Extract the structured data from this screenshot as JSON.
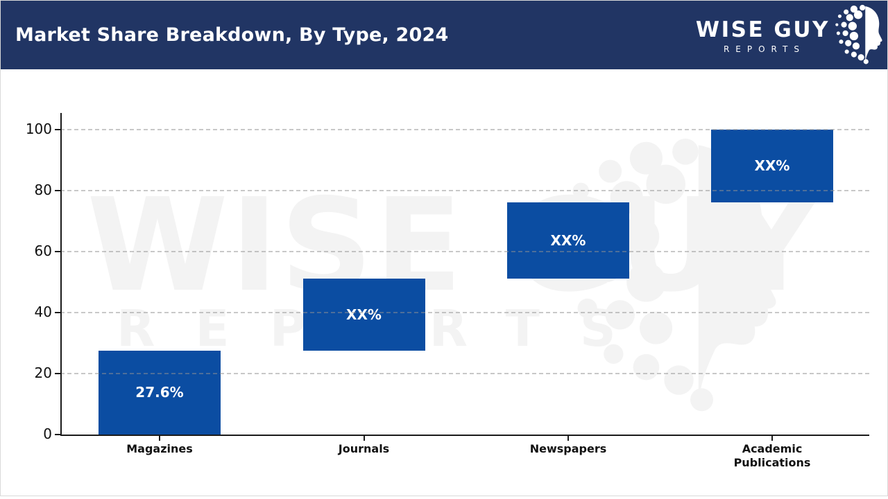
{
  "header": {
    "title": "Market Share Breakdown, By Type, 2024",
    "logo": {
      "line1": "WISE GUY",
      "line2": "REPORTS"
    }
  },
  "watermark": {
    "line1": "WISE GUY",
    "line2": "REPORTS"
  },
  "colors": {
    "header_background": "#213564",
    "bar_blue": "#0b4da2",
    "axis": "#1a1a1a",
    "gridline": "#919191",
    "watermark": "#f3f3f3",
    "bar_label_text": "#ffffff"
  },
  "chart_data": {
    "type": "bar",
    "subtype": "waterfall",
    "title": "Market Share Breakdown, By Type, 2024",
    "categories": [
      "Magazines",
      "Journals",
      "Newspapers",
      "Academic Publications"
    ],
    "bars": [
      {
        "category": "Magazines",
        "start": 0,
        "end": 27.6,
        "label": "27.6%"
      },
      {
        "category": "Journals",
        "start": 27.6,
        "end": 51.2,
        "label": "XX%"
      },
      {
        "category": "Newspapers",
        "start": 51.2,
        "end": 76.2,
        "label": "XX%"
      },
      {
        "category": "Academic Publications",
        "start": 76.2,
        "end": 100,
        "label": "XX%"
      }
    ],
    "xlabel": "",
    "ylabel": "",
    "ylim": [
      0,
      100
    ],
    "yticks": [
      0,
      20,
      40,
      60,
      80,
      100
    ],
    "grid": "horizontal-dashed",
    "legend": "none"
  }
}
